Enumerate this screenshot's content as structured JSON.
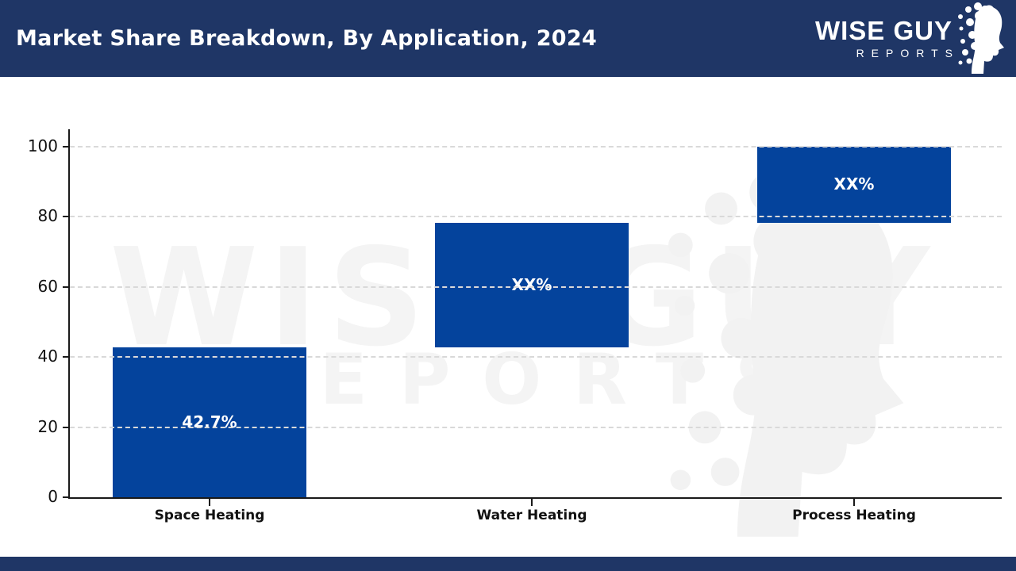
{
  "header": {
    "title": "Market Share Breakdown, By Application, 2024",
    "logo_word": "WISE GUY",
    "logo_sub": "REPORTS"
  },
  "watermark": {
    "line1": "WISE GUY",
    "line2": "REPORTS"
  },
  "colors": {
    "header_bg": "#1F3666",
    "footer_bg": "#1F3666",
    "bar": "#04439C",
    "grid": "#D9D9D9",
    "axis": "#1A1A1A",
    "bar_label": "#FFFFFF",
    "watermark": "#F4F4F4"
  },
  "chart_data": {
    "type": "bar",
    "subtype": "waterfall",
    "title": "Market Share Breakdown, By Application, 2024",
    "categories": [
      "Space Heating",
      "Water Heating",
      "Process Heating"
    ],
    "segments": [
      {
        "category": "Space Heating",
        "start": 0,
        "end": 42.7,
        "value": 42.7,
        "label": "42.7%"
      },
      {
        "category": "Water Heating",
        "start": 42.7,
        "end": 78.2,
        "value": 35.5,
        "label": "XX%"
      },
      {
        "category": "Process Heating",
        "start": 78.2,
        "end": 100,
        "value": 21.8,
        "label": "XX%"
      }
    ],
    "ylim": [
      0,
      100
    ],
    "yticks": [
      0,
      20,
      40,
      60,
      80,
      100
    ],
    "xlabel": "",
    "ylabel": "",
    "grid": "dashed-horizontal",
    "legend": "none",
    "bar_color": "#04439C"
  }
}
